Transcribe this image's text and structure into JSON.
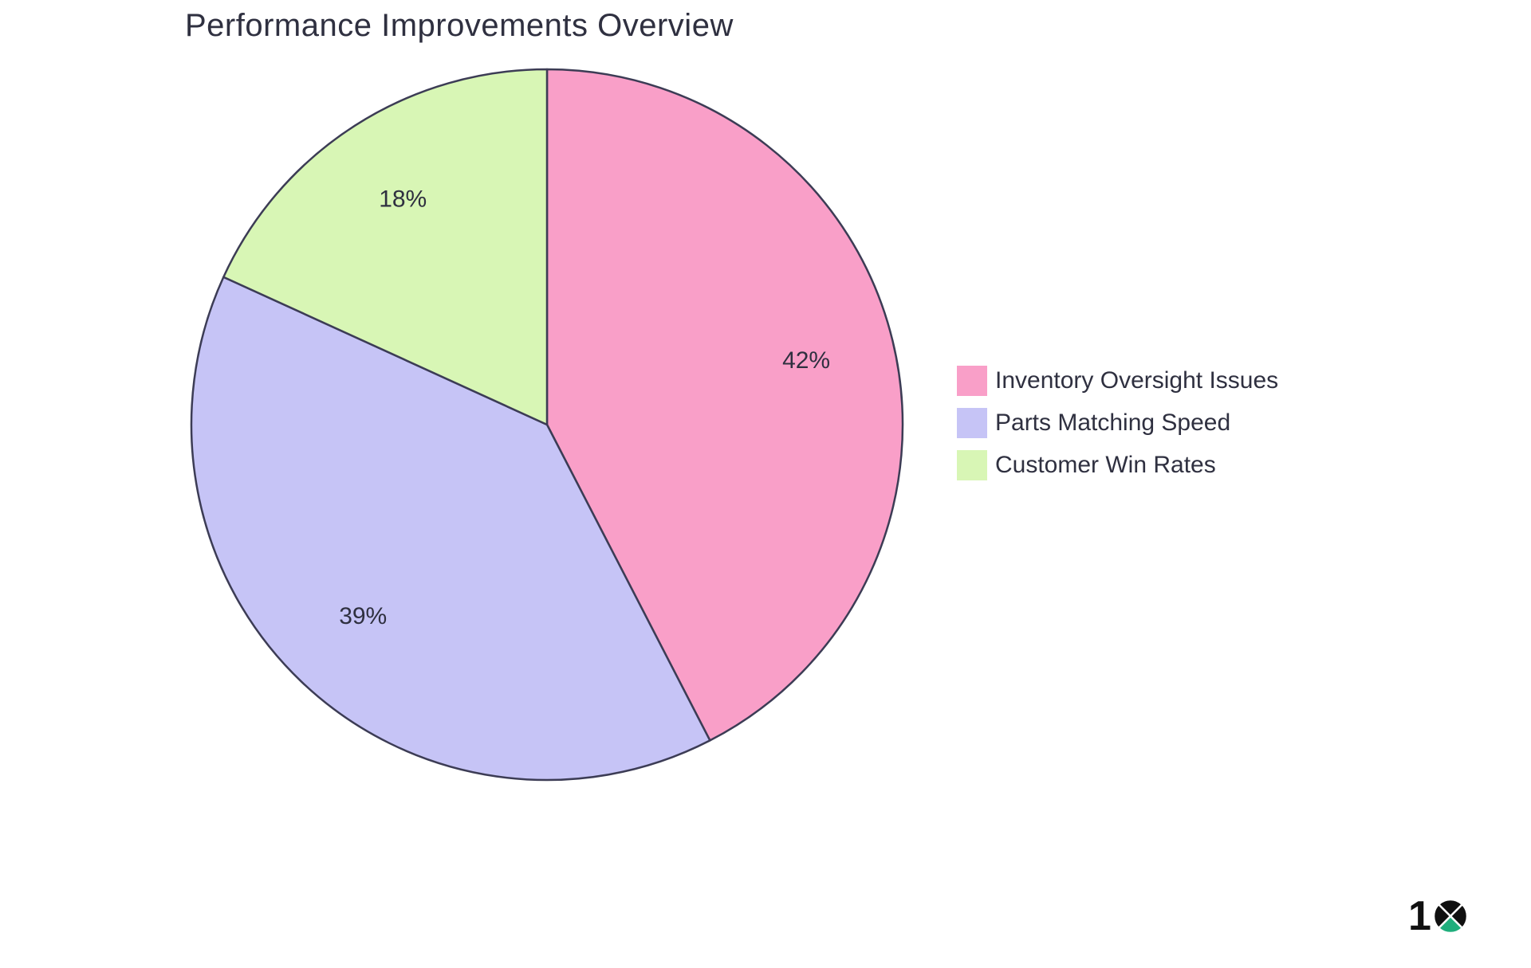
{
  "title": "Performance Improvements Overview",
  "chart_data": {
    "type": "pie",
    "title": "Performance Improvements Overview",
    "labels": [
      "Inventory Oversight Issues",
      "Parts Matching Speed",
      "Customer Win Rates"
    ],
    "values": [
      42,
      39,
      18
    ],
    "percent_labels": [
      "42%",
      "39%",
      "18%"
    ],
    "colors": [
      "#F99FC8",
      "#C6C4F6",
      "#D8F6B5"
    ],
    "stroke_color": "#3C3C55",
    "start_angle_deg": 0,
    "direction": "clockwise",
    "legend_position": "right",
    "label_radius_fraction": 0.75
  },
  "logo": {
    "text": "1",
    "icon": "pinwheel-x-icon",
    "icon_accent_color": "#1FAE7C",
    "icon_base_color": "#101010"
  }
}
